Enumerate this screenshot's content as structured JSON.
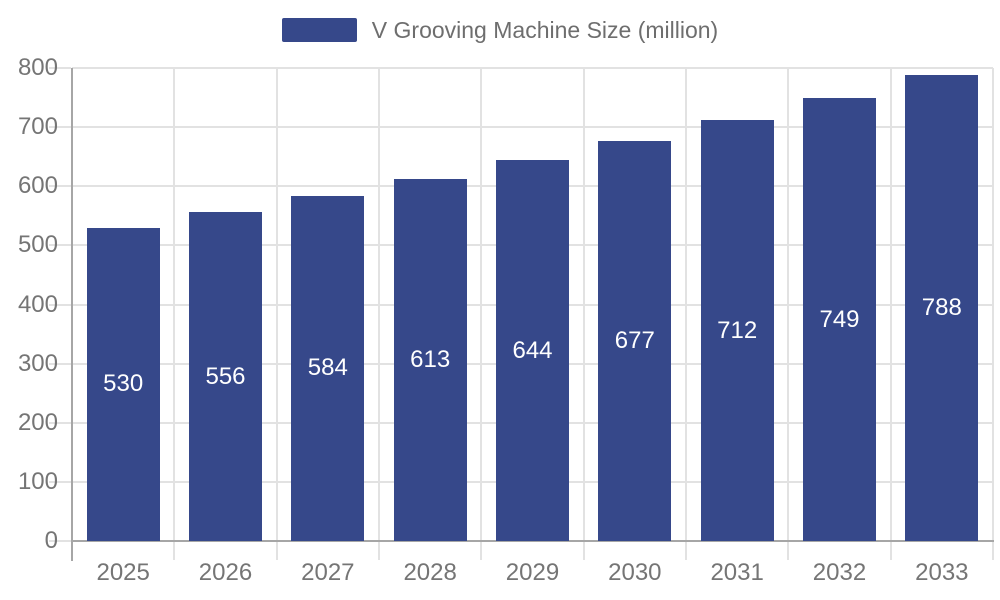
{
  "chart_data": {
    "type": "bar",
    "title": "V Grooving Machine Size (million)",
    "series": [
      {
        "name": "V Grooving Machine Size (million)",
        "values": [
          530,
          556,
          584,
          613,
          644,
          677,
          712,
          749,
          788
        ]
      }
    ],
    "categories": [
      "2025",
      "2026",
      "2027",
      "2028",
      "2029",
      "2030",
      "2031",
      "2032",
      "2033"
    ],
    "xlabel": "",
    "ylabel": "",
    "ylim": [
      0,
      800
    ],
    "y_ticks": [
      0,
      100,
      200,
      300,
      400,
      500,
      600,
      700,
      800
    ],
    "grid": true,
    "legend_position": "top-center",
    "bar_labels_visible": true,
    "colors": {
      "bar": "#36488a",
      "bar_label": "#ffffff",
      "grid": "#e2e2e2",
      "axis": "#a6a6a6",
      "tick": "#e2e2e2",
      "tick_text": "#757575",
      "legend_text": "#6e6e6e",
      "background": "#ffffff"
    }
  }
}
